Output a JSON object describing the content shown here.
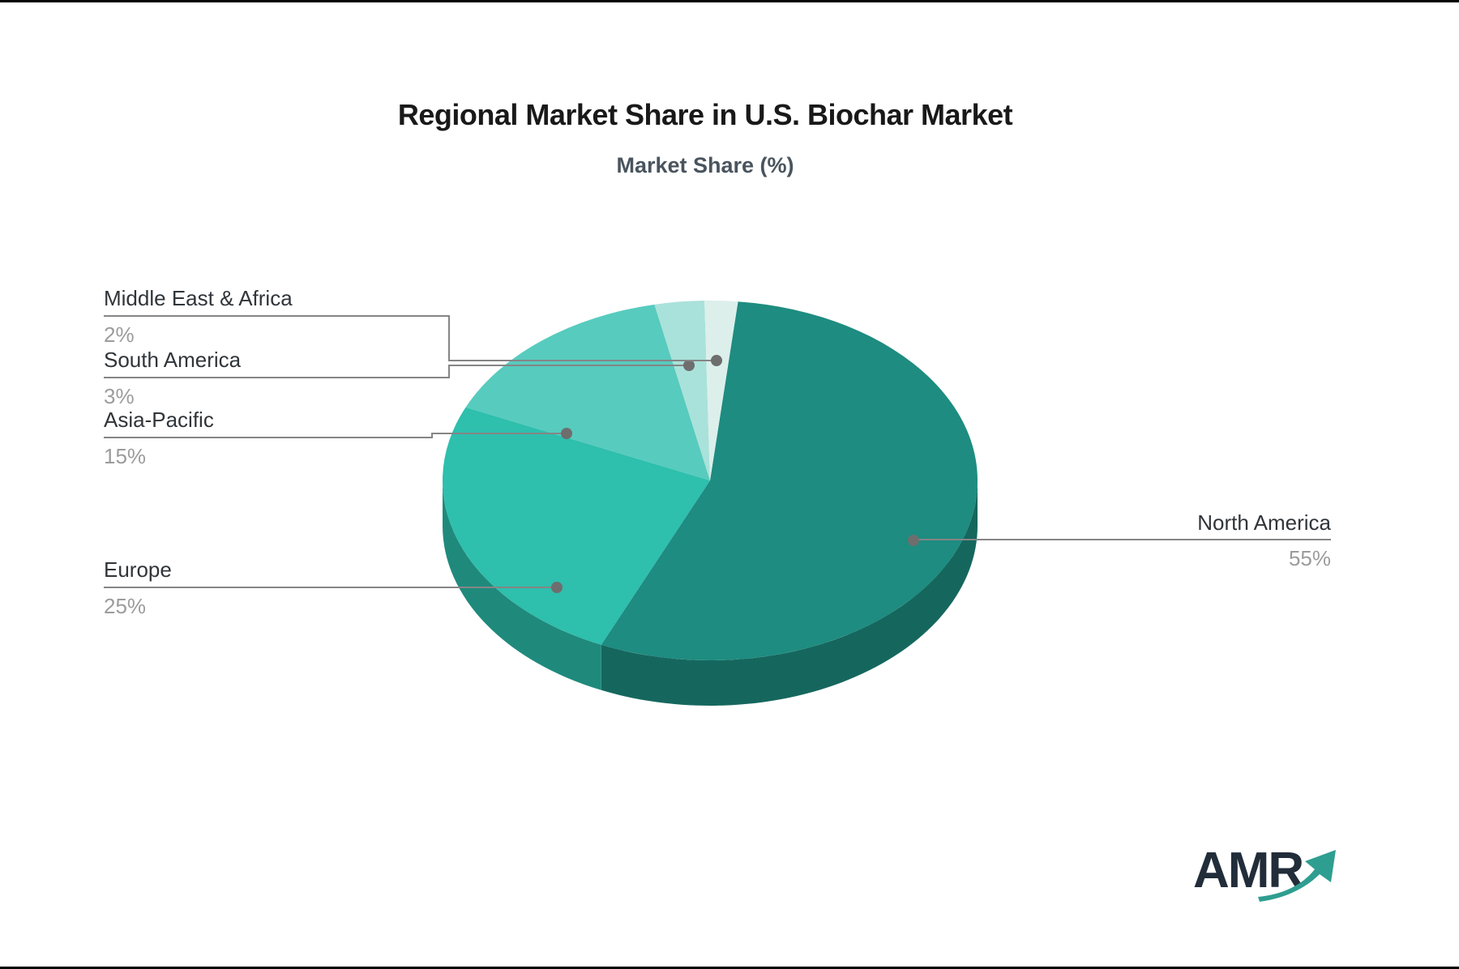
{
  "title": "Regional Market Share in U.S. Biochar Market",
  "subtitle": "Market Share (%)",
  "logo": {
    "text": "AMR",
    "text_color": "#222D3A",
    "arrow_color": "#2E9E90"
  },
  "chart_data": {
    "type": "pie",
    "style": "3d",
    "title": "Regional Market Share in U.S. Biochar Market",
    "subtitle": "Market Share (%)",
    "unit": "%",
    "start_angle_deg": 6,
    "clockwise": true,
    "legend_position": "callout-labels",
    "leader_color": "#858585",
    "dot_color": "#6E6E6E",
    "label_color": "#30353A",
    "value_color": "#9C9C9C",
    "categories": [
      "North America",
      "Europe",
      "Asia-Pacific",
      "South America",
      "Middle East & Africa"
    ],
    "values": [
      55,
      25,
      15,
      3,
      2
    ],
    "slices": [
      {
        "name": "North America",
        "value": 55,
        "value_label": "55%",
        "color": "#1E8C80",
        "side_color": "#15675E"
      },
      {
        "name": "Europe",
        "value": 25,
        "value_label": "25%",
        "color": "#2EBFAD",
        "side_color": "#1F8A7C"
      },
      {
        "name": "Asia-Pacific",
        "value": 15,
        "value_label": "15%",
        "color": "#57CBBE",
        "side_color": "#3EA89B"
      },
      {
        "name": "South America",
        "value": 3,
        "value_label": "3%",
        "color": "#A9E2DA",
        "side_color": "#86C4BB"
      },
      {
        "name": "Middle East & Africa",
        "value": 2,
        "value_label": "2%",
        "color": "#DCEFEB",
        "side_color": "#B9D8D2"
      }
    ]
  }
}
